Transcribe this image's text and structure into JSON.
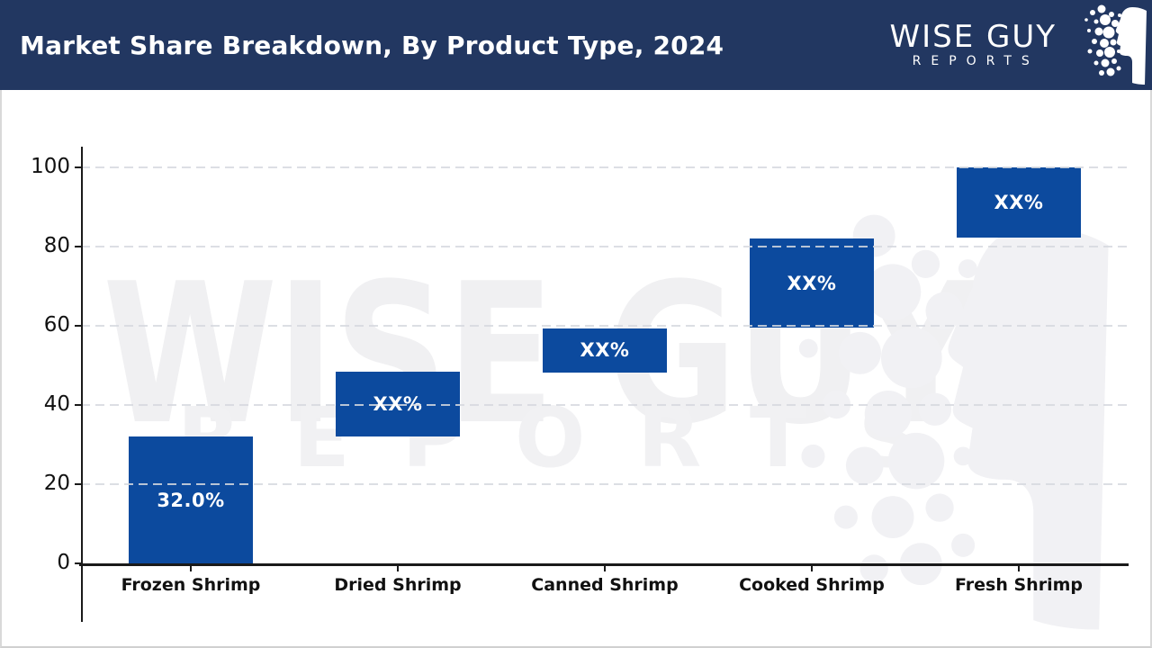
{
  "header": {
    "title": "Market Share Breakdown, By Product Type, 2024",
    "logo": {
      "line1": "WISE GUY",
      "line2": "REPORTS"
    }
  },
  "watermark": {
    "line1": "WISE GUY",
    "line2": "REPORTS"
  },
  "colors": {
    "header_bg": "#223761",
    "bar_blue": "#0c4a9e",
    "axis_black": "#1a1a1a",
    "gridline_gray": "#d6d9df",
    "watermark_gray": "#f0f0f2",
    "bar_label_white": "#ffffff"
  },
  "chart_data": {
    "type": "bar",
    "subtype": "waterfall",
    "title": "Market Share Breakdown, By Product Type, 2024",
    "categories": [
      "Frozen Shrimp",
      "Dried Shrimp",
      "Canned Shrimp",
      "Cooked Shrimp",
      "Fresh Shrimp"
    ],
    "segments": [
      {
        "category": "Frozen Shrimp",
        "label": "32.0%",
        "start": 0,
        "end": 32
      },
      {
        "category": "Dried Shrimp",
        "label": "XX%",
        "start": 32,
        "end": 48.4
      },
      {
        "category": "Canned Shrimp",
        "label": "XX%",
        "start": 48.2,
        "end": 59.4
      },
      {
        "category": "Cooked Shrimp",
        "label": "XX%",
        "start": 59.5,
        "end": 82
      },
      {
        "category": "Fresh Shrimp",
        "label": "XX%",
        "start": 82.3,
        "end": 100
      }
    ],
    "yticks": [
      0,
      20,
      40,
      60,
      80,
      100
    ],
    "ylim": [
      0,
      105
    ],
    "xlabel": "",
    "ylabel": "",
    "grid": "horizontal-dashed-over-bars",
    "legend": "none"
  }
}
